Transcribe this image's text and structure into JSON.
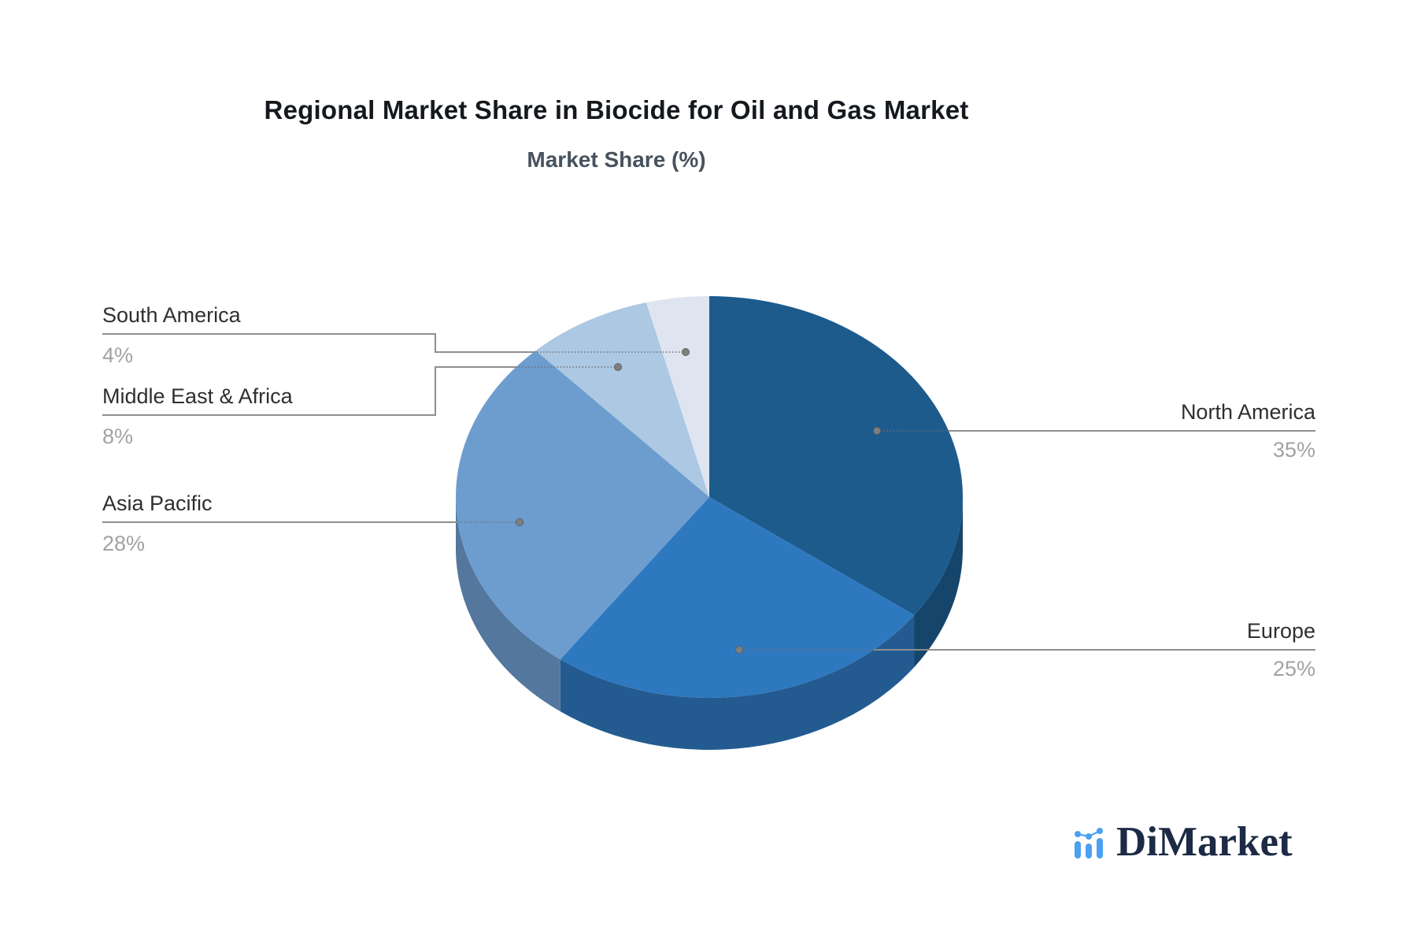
{
  "header": {
    "title": "Regional Market Share in Biocide for Oil and Gas Market",
    "subtitle": "Market Share (%)"
  },
  "brand": {
    "text": "DiMarket",
    "icon": "bar-chart-sparkline-icon",
    "icon_color": "#4ba0f0",
    "text_color": "#1c2a45"
  },
  "chart_data": {
    "type": "pie",
    "title": "Regional Market Share in Biocide for Oil and Gas Market",
    "subtitle": "Market Share (%)",
    "unit": "%",
    "effect": "3d",
    "direction": "clockwise",
    "start_angle": "12-o-clock",
    "legend_position": "none",
    "slices": [
      {
        "label": "North America",
        "value": 35,
        "value_label": "35%",
        "color": "#1d5b8d",
        "label_side": "right"
      },
      {
        "label": "Europe",
        "value": 25,
        "value_label": "25%",
        "color": "#2e78bf",
        "label_side": "right"
      },
      {
        "label": "Asia Pacific",
        "value": 28,
        "value_label": "28%",
        "color": "#6d9dcf",
        "label_side": "left"
      },
      {
        "label": "Middle East & Africa",
        "value": 8,
        "value_label": "8%",
        "color": "#adc8e3",
        "label_side": "left"
      },
      {
        "label": "South America",
        "value": 4,
        "value_label": "4%",
        "color": "#dee5f0",
        "label_side": "left"
      }
    ],
    "label_color": "#2f2f2f",
    "value_color": "#a2a2a2",
    "leader_line_color": "#8e8e8e",
    "background_color": "#ffffff"
  }
}
